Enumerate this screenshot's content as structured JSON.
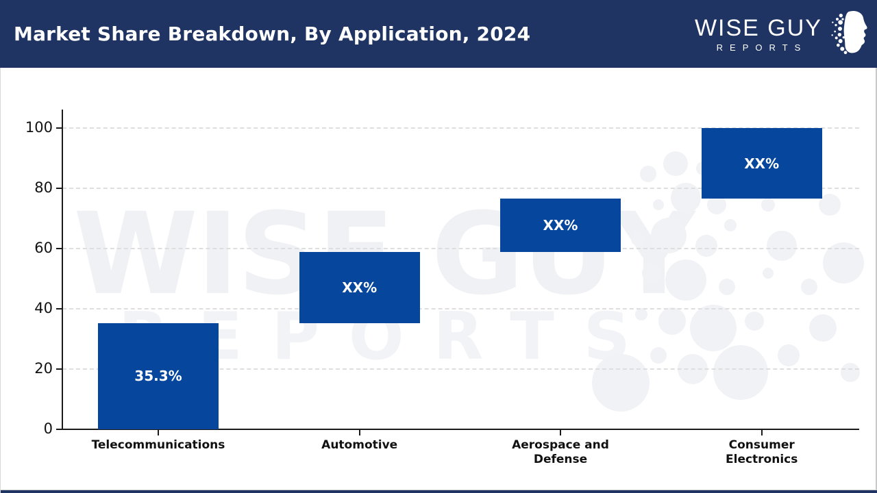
{
  "header": {
    "title": "Market Share Breakdown, By Application, 2024",
    "logo": {
      "line1": "WISE GUY",
      "line2": "REPORTS"
    }
  },
  "watermark": {
    "line1": "WISE GUY",
    "line2": "REPORTS"
  },
  "footer": {
    "note": ""
  },
  "colors": {
    "header_bg": "#1f3463",
    "bar": "#06479d",
    "grid": "#dedede",
    "axis": "#1a1a1a",
    "watermark": "#f0f1f5",
    "bar_label": "#ffffff"
  },
  "chart_data": {
    "type": "bar",
    "subtype": "waterfall-stacked-percentage",
    "title": "Market Share Breakdown, By Application, 2024",
    "categories": [
      "Telecommunications",
      "Automotive",
      "Aerospace and\nDefense",
      "Consumer\nElectronics"
    ],
    "segments": [
      {
        "category": "Telecommunications",
        "start": 0,
        "end": 35.3,
        "value": 35.3,
        "label": "35.3%"
      },
      {
        "category": "Automotive",
        "start": 35.3,
        "end": 58.8,
        "value": 23.5,
        "label": "XX%"
      },
      {
        "category": "Aerospace and Defense",
        "start": 58.8,
        "end": 76.5,
        "value": 17.7,
        "label": "XX%"
      },
      {
        "category": "Consumer Electronics",
        "start": 76.5,
        "end": 100,
        "value": 23.5,
        "label": "XX%"
      }
    ],
    "yticks": [
      0,
      20,
      40,
      60,
      80,
      100
    ],
    "ylim": [
      0,
      106
    ],
    "xlabel": "",
    "ylabel": "",
    "grid": "horizontal-dashed",
    "legend": null
  }
}
